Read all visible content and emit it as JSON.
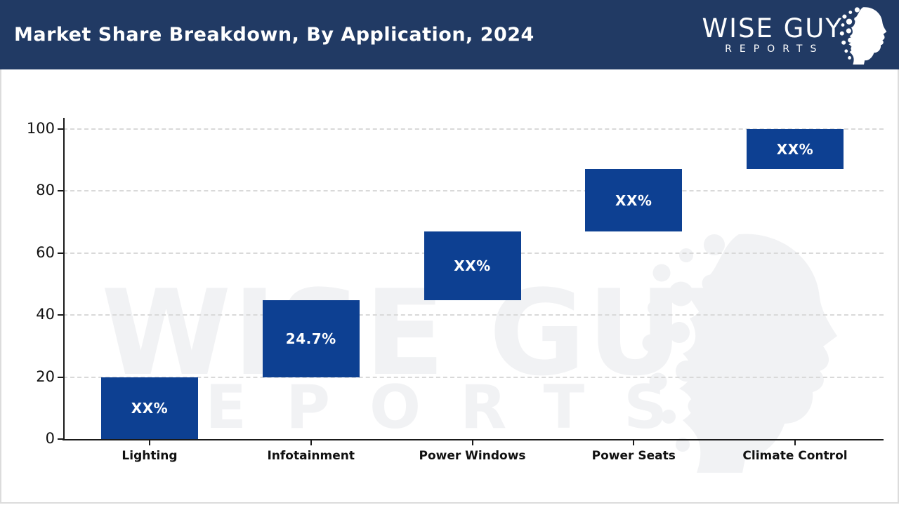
{
  "header": {
    "title": "Market Share Breakdown, By Application, 2024",
    "logo": {
      "line1": "WISE GUY",
      "line2": "REPORTS"
    }
  },
  "watermark": {
    "line1": "WISE GUY",
    "line2": "REPORTS"
  },
  "colors": {
    "header_bg": "#213a64",
    "bar": "#0d4092",
    "bar_label_text": "#ffffff",
    "grid": "#d9d9d9",
    "axis": "#1a1a1a",
    "watermark": "#f1f2f4"
  },
  "chart_data": {
    "type": "bar",
    "subtype": "floating-waterfall",
    "title": "Market Share Breakdown, By Application, 2024",
    "categories": [
      "Lighting",
      "Infotainment",
      "Power Windows",
      "Power Seats",
      "Climate Control"
    ],
    "series": [
      {
        "name": "Market Share (%)",
        "ranges": [
          [
            0,
            20
          ],
          [
            20,
            44.7
          ],
          [
            44.7,
            67
          ],
          [
            67,
            87
          ],
          [
            87,
            100
          ]
        ]
      }
    ],
    "bar_labels": [
      "XX%",
      "24.7%",
      "XX%",
      "XX%",
      "XX%"
    ],
    "xlabel": "",
    "ylabel": "",
    "yticks": [
      0,
      20,
      40,
      60,
      80,
      100
    ],
    "ylim": [
      0,
      100
    ],
    "grid": "horizontal-dashed",
    "legend": "none"
  }
}
